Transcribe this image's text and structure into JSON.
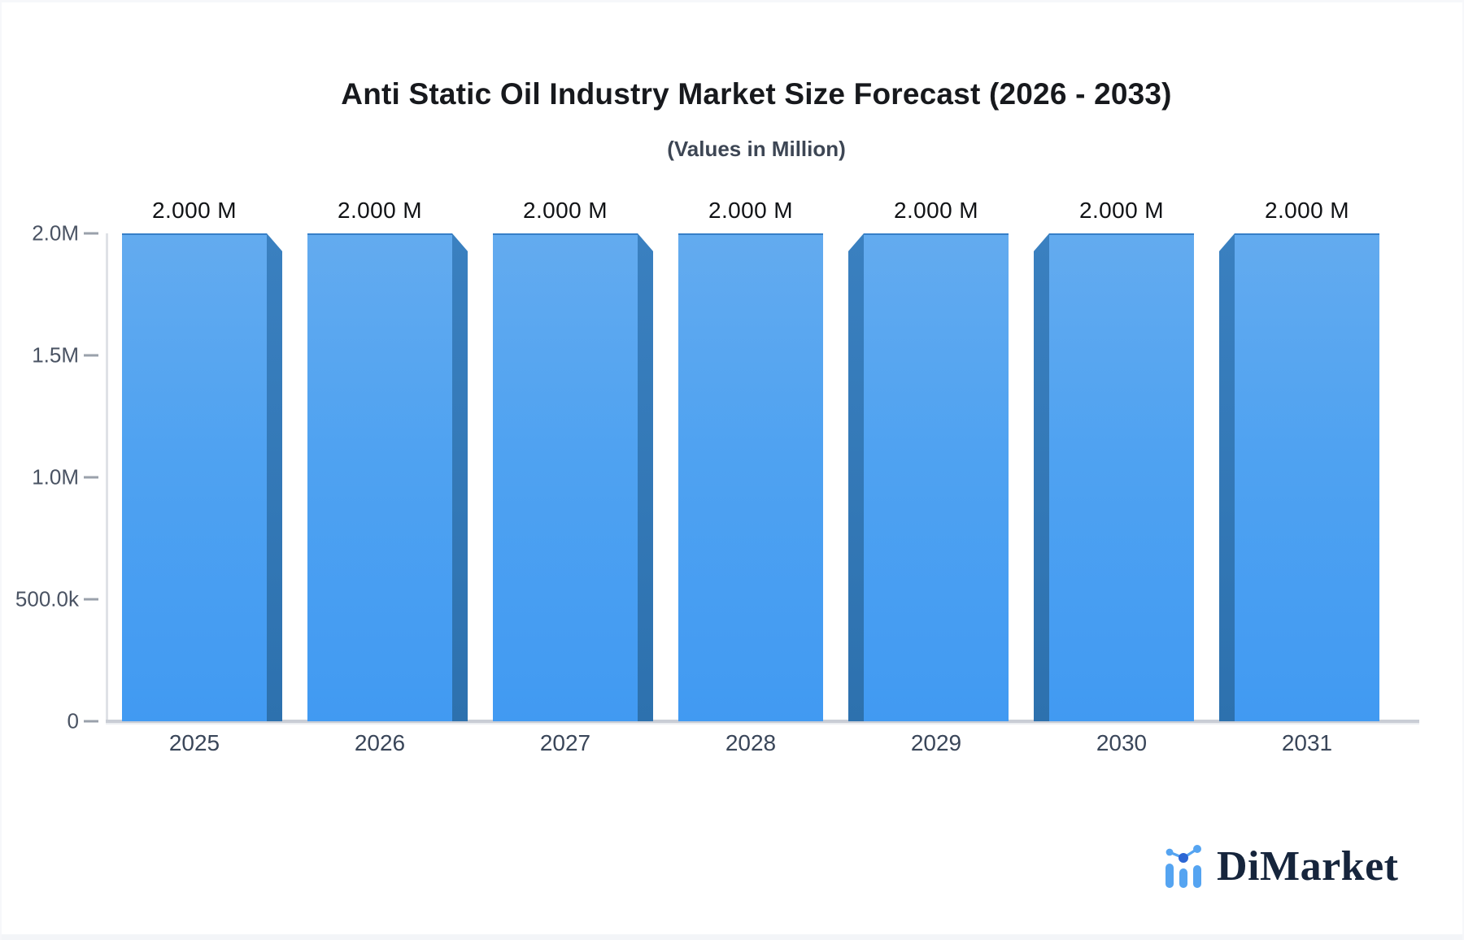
{
  "title": "Anti Static Oil Industry Market Size Forecast (2026 - 2033)",
  "subtitle": "(Values in Million)",
  "chart_data": {
    "type": "bar",
    "categories": [
      "2025",
      "2026",
      "2027",
      "2028",
      "2029",
      "2030",
      "2031"
    ],
    "values": [
      2000000,
      2000000,
      2000000,
      2000000,
      2000000,
      2000000,
      2000000
    ],
    "value_labels": [
      "2.000 M",
      "2.000 M",
      "2.000 M",
      "2.000 M",
      "2.000 M",
      "2.000 M",
      "2.000 M"
    ],
    "unit": "Million",
    "ylim": [
      0,
      2000000
    ],
    "ytick_labels_top_to_bottom": [
      "2.0M",
      "1.5M",
      "1.0M",
      "500.0k",
      "0"
    ],
    "grid": false,
    "legend": "none",
    "bar_style": "3d-perspective",
    "colors": {
      "bar_face_top": "#63abef",
      "bar_face_bottom": "#419af2",
      "bar_side": "#2e75b4",
      "axis_line": "#dfe1e6",
      "baseline": "#c9cdd5",
      "tick": "#9aa1ab",
      "ytick_text": "#4a5363",
      "xtick_text": "#3a4659",
      "value_text": "#111316",
      "title_text": "#17191d",
      "subtitle_text": "#3d4654"
    }
  },
  "branding": {
    "logo_text": "DiMarket",
    "logo_icon": "mini-bar-line-chart-icon",
    "logo_text_color": "#16253c",
    "logo_bar_color": "#55a4f1",
    "logo_dot_color": "#2c66d4"
  }
}
